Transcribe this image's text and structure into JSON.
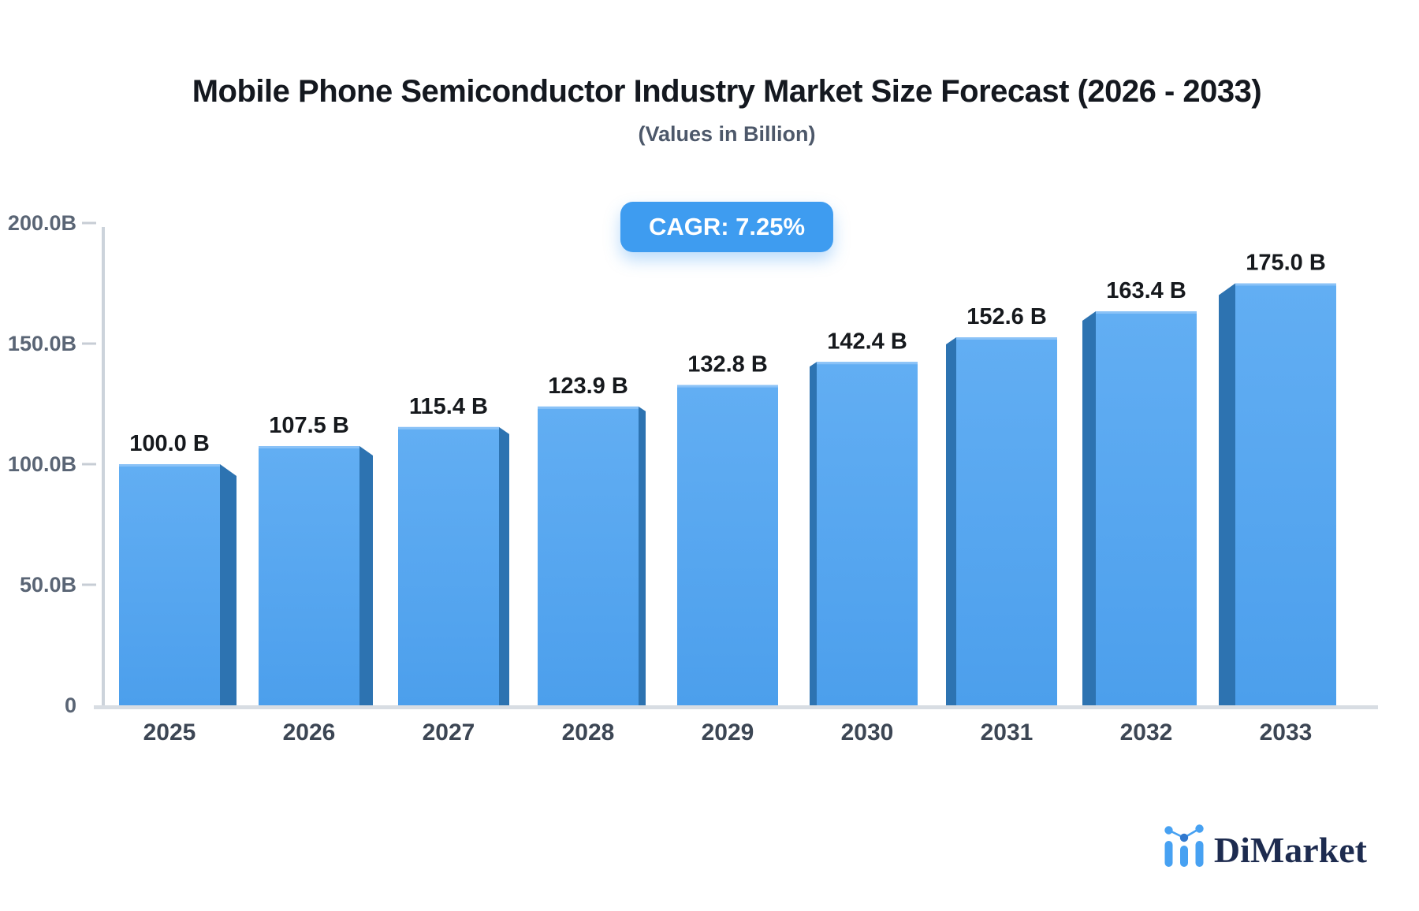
{
  "header": {
    "title": "Mobile Phone Semiconductor Industry Market Size Forecast (2026 - 2033)",
    "subtitle": "(Values in Billion)"
  },
  "badge": {
    "label": "CAGR: 7.25%"
  },
  "footer": {
    "brand": "DiMarket"
  },
  "chart_data": {
    "type": "bar",
    "title": "Mobile Phone Semiconductor Industry Market Size Forecast (2026 - 2033)",
    "subtitle": "(Values in Billion)",
    "cagr": "7.25%",
    "categories": [
      "2025",
      "2026",
      "2027",
      "2028",
      "2029",
      "2030",
      "2031",
      "2032",
      "2033"
    ],
    "values": [
      100.0,
      107.5,
      115.4,
      123.9,
      132.8,
      142.4,
      152.6,
      163.4,
      175.0
    ],
    "value_labels": [
      "100.0 B",
      "107.5 B",
      "115.4 B",
      "123.9 B",
      "132.8 B",
      "142.4 B",
      "152.6 B",
      "163.4 B",
      "175.0 B"
    ],
    "unit": "Billion",
    "xlabel": "",
    "ylabel": "",
    "ylim": [
      0,
      200
    ],
    "y_ticks": [
      {
        "value": 0,
        "label": "0"
      },
      {
        "value": 50,
        "label": "50.0B"
      },
      {
        "value": 100,
        "label": "100.0B"
      },
      {
        "value": 150,
        "label": "150.0B"
      },
      {
        "value": 200,
        "label": "200.0B"
      }
    ],
    "grid": false,
    "legend": false,
    "bar_style": "3d-extruded"
  },
  "colors": {
    "bar_face_top": "#62aef3",
    "bar_face_bottom": "#4c9fec",
    "bar_side": "#2d73b1",
    "bar_top_highlight": "#8ac2f7",
    "badge_bg": "#3e9cf0",
    "axis_line": "#ccd3db",
    "baseline": "#d8dde3",
    "tick_text": "#5a6575",
    "x_label_text": "#3c4654",
    "value_label_text": "#16191d",
    "title_text": "#14181f",
    "subtitle_text": "#4d586a",
    "brand_text": "#1d2b4f",
    "brand_icon": "#47a1f2",
    "brand_icon_dot": "#3178ce"
  }
}
